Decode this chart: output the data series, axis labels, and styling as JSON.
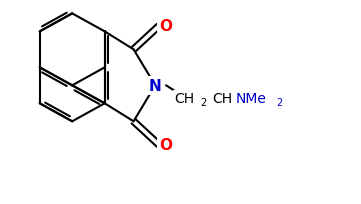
{
  "bg_color": "#ffffff",
  "line_color": "#000000",
  "text_color": "#000000",
  "n_color": "#0000cd",
  "o_color": "#ff0000",
  "figsize": [
    3.61,
    2.05
  ],
  "dpi": 100,
  "linewidth": 1.5,
  "font_size": 10,
  "sub_font_size": 7,
  "xlim": [
    0,
    10
  ],
  "ylim": [
    0,
    5.7
  ]
}
